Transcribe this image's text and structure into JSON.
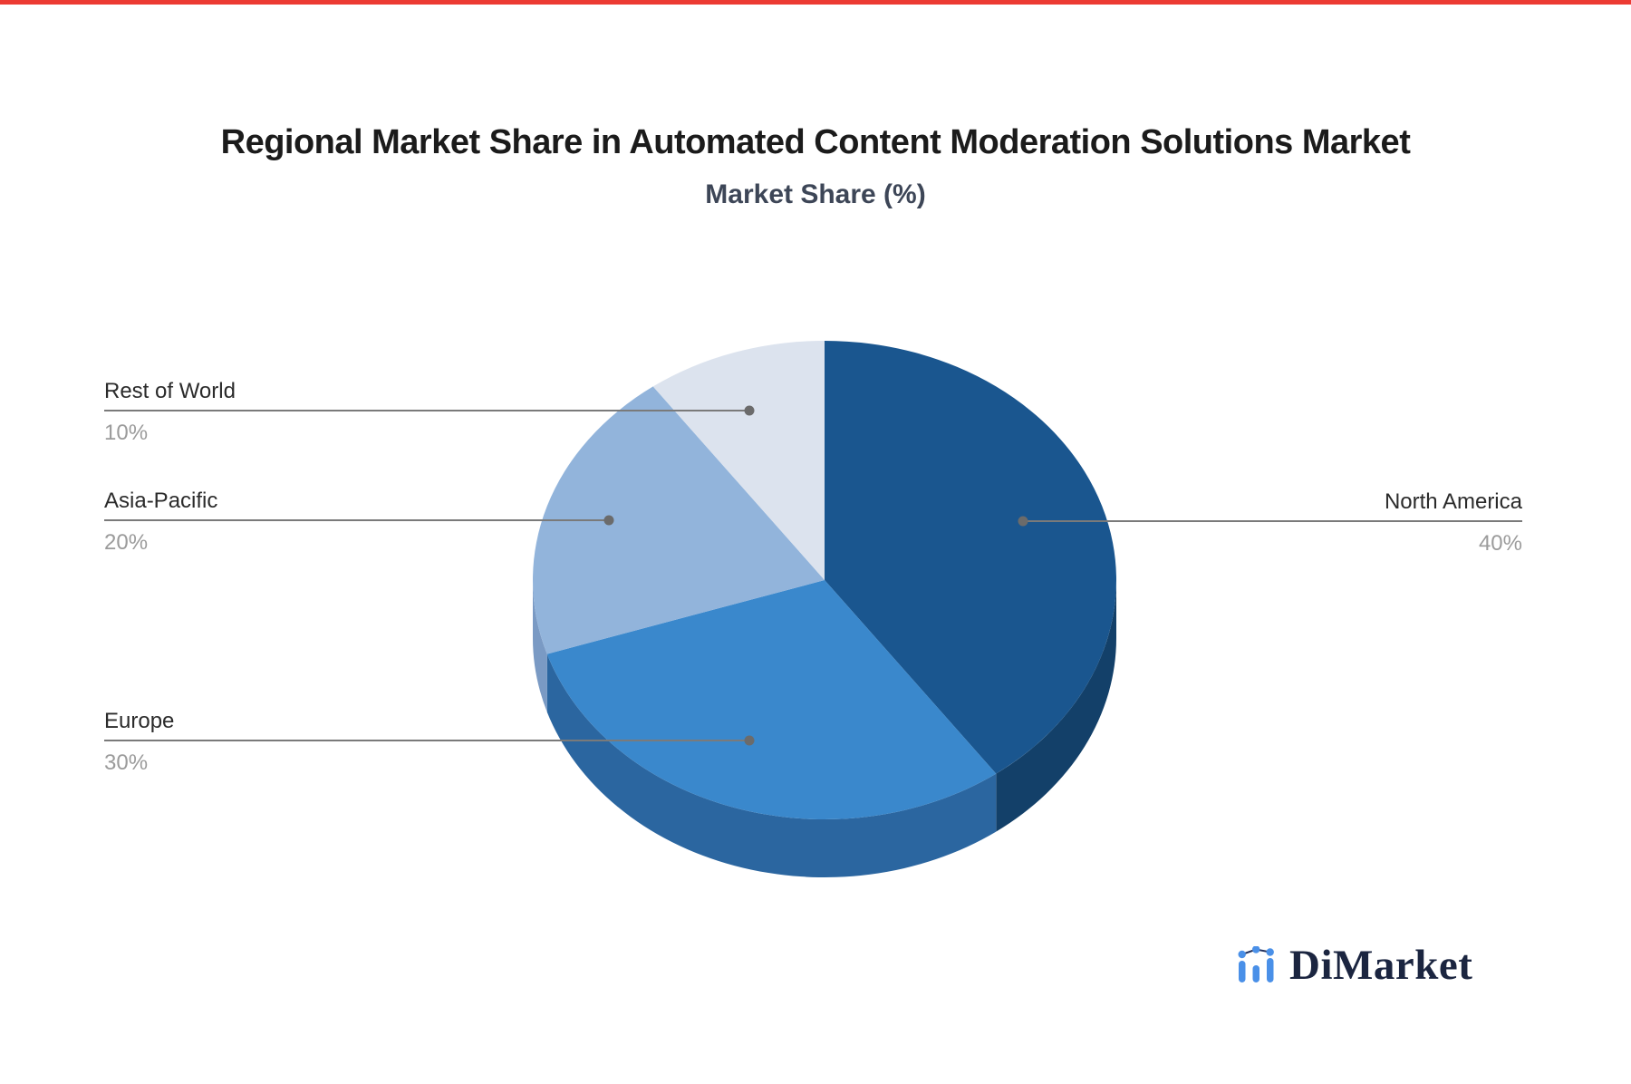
{
  "meta": {
    "top_bar_color": "#EC3B33",
    "background_color": "#FFFFFF"
  },
  "header": {
    "title": "Regional Market Share in Automated Content Moderation Solutions Market",
    "subtitle": "Market Share (%)"
  },
  "chart_data": {
    "type": "pie",
    "style": "3d",
    "title": "Regional Market Share in Automated Content Moderation Solutions Market",
    "subtitle": "Market Share (%)",
    "unit": "percent",
    "start_angle": "12-oclock",
    "direction": "clockwise",
    "legend_position": "callout-labels",
    "labels": [
      "North America",
      "Europe",
      "Asia-Pacific",
      "Rest of World"
    ],
    "values": [
      40,
      30,
      20,
      10
    ],
    "colors": [
      "#1A568F",
      "#3A88CC",
      "#92B4DB",
      "#DCE3EE"
    ],
    "side_colors": [
      "#134069",
      "#2B66A0",
      "#7A9AC4",
      "#C2CBDA"
    ],
    "callouts": [
      {
        "label": "North America",
        "value": "40%",
        "side": "right"
      },
      {
        "label": "Europe",
        "value": "30%",
        "side": "left"
      },
      {
        "label": "Asia-Pacific",
        "value": "20%",
        "side": "left"
      },
      {
        "label": "Rest of World",
        "value": "10%",
        "side": "left"
      }
    ],
    "leader_line_color": "#7A7A7A",
    "leader_dot_color": "#6B6B6B",
    "label_color": "#2B2B2B",
    "value_color": "#9B9B9B"
  },
  "branding": {
    "logo_text": "DiMarket",
    "logo_icon": "bar-chart-trend-icon",
    "logo_text_color": "#1B2540",
    "logo_icon_color": "#4A90E8",
    "logo_line_color": "#22315E"
  }
}
